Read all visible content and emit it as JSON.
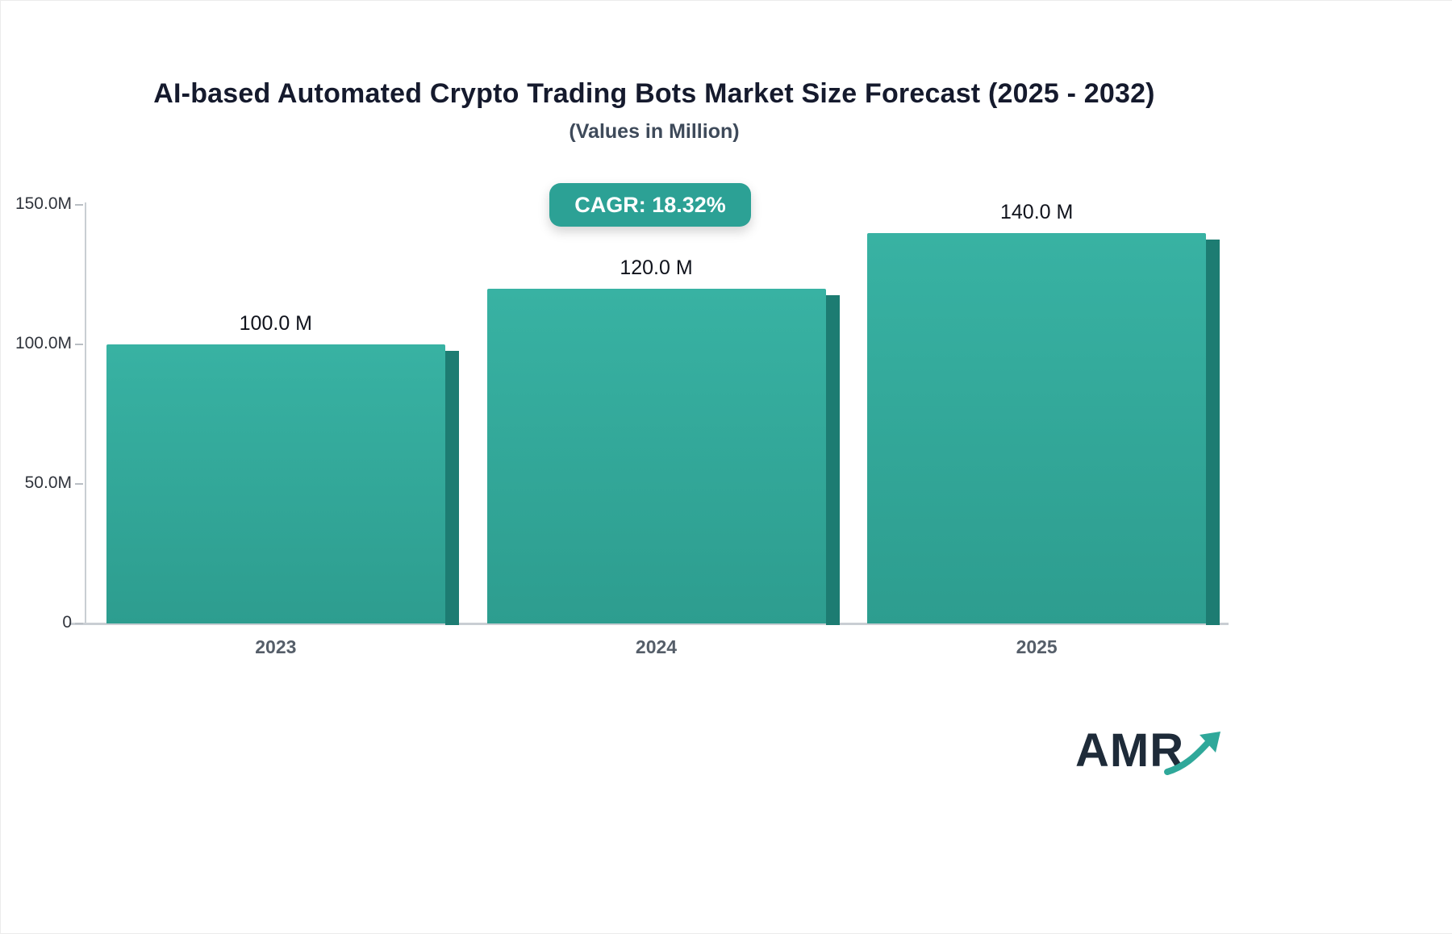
{
  "header": {
    "title": "AI-based Automated Crypto Trading Bots Market Size Forecast (2025 - 2032)",
    "subtitle": "(Values in Million)"
  },
  "badge": {
    "label": "CAGR: 18.32%"
  },
  "chart_data": {
    "type": "bar",
    "title": "AI-based Automated Crypto Trading Bots Market Size Forecast (2025 - 2032)",
    "subtitle": "(Values in Million)",
    "cagr_label": "CAGR: 18.32%",
    "categories": [
      "2023",
      "2024",
      "2025"
    ],
    "values": [
      100,
      120,
      140
    ],
    "value_labels": [
      "100.0 M",
      "120.0 M",
      "140.0 M"
    ],
    "xlabel": "",
    "ylabel": "",
    "ylim": [
      0,
      150
    ],
    "y_ticks": [
      "150.0M",
      "100.0M",
      "50.0M",
      "0"
    ],
    "y_tick_values": [
      150,
      100,
      50,
      0
    ],
    "grid": false,
    "legend": false,
    "bar_color": "#2fa89a",
    "bar_side_color": "#1d7c72"
  },
  "logo": {
    "text": "AMR"
  }
}
